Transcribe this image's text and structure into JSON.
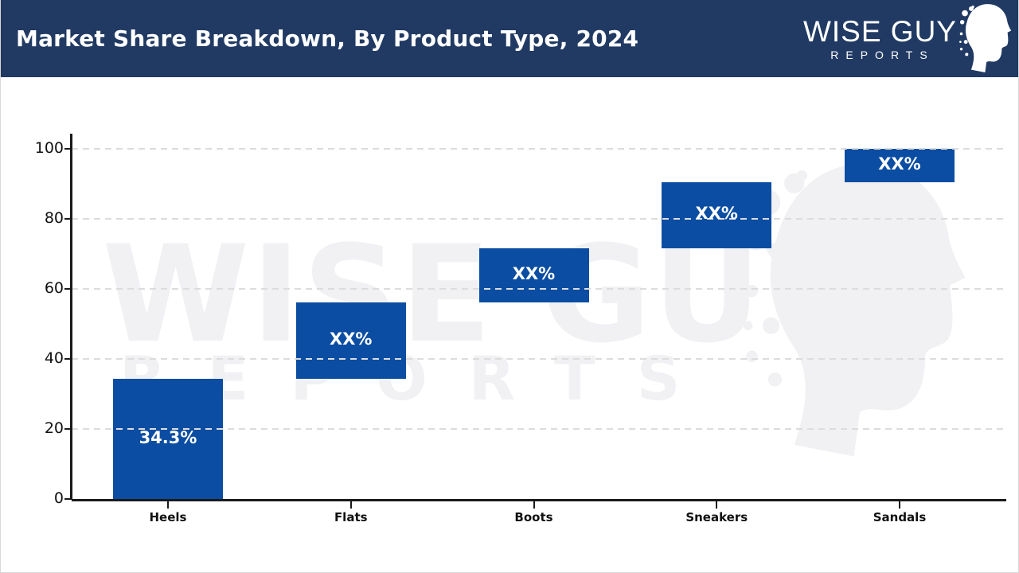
{
  "header": {
    "title": "Market Share Breakdown, By Product Type, 2024",
    "logo": {
      "line1": "WISE GUY",
      "line2": "REPORTS"
    }
  },
  "watermark": {
    "line1": "WISE GUY",
    "line2": "REPORTS"
  },
  "colors": {
    "header_bg": "#213a63",
    "bar": "#0b4da2",
    "grid": "#dcdcdc",
    "bar_label": "#ffffff",
    "watermark": "#f1f1f4"
  },
  "chart_data": {
    "type": "bar",
    "subtype": "waterfall-floating-bars",
    "title": "Market Share Breakdown, By Product Type, 2024",
    "categories": [
      "Heels",
      "Flats",
      "Boots",
      "Sneakers",
      "Sandals"
    ],
    "segments": [
      {
        "category": "Heels",
        "start": 0,
        "end": 34.3,
        "label": "34.3%"
      },
      {
        "category": "Flats",
        "start": 34.3,
        "end": 56.1,
        "label": "XX%"
      },
      {
        "category": "Boots",
        "start": 56.1,
        "end": 71.6,
        "label": "XX%"
      },
      {
        "category": "Sneakers",
        "start": 71.6,
        "end": 90.5,
        "label": "XX%"
      },
      {
        "category": "Sandals",
        "start": 90.5,
        "end": 100,
        "label": "XX%"
      }
    ],
    "yticks": [
      0,
      20,
      40,
      60,
      80,
      100
    ],
    "ylim": [
      0,
      105
    ],
    "xlabel": "",
    "ylabel": "",
    "grid": "horizontal-dashed",
    "legend": "none"
  }
}
